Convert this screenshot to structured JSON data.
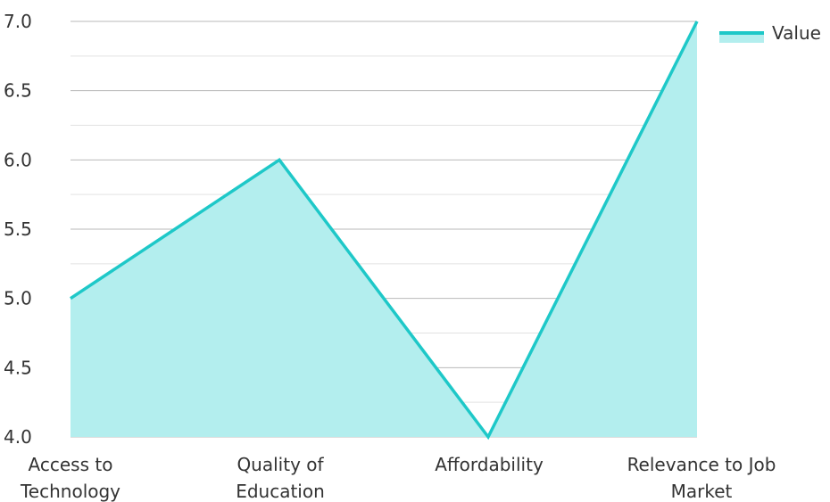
{
  "chart_data": {
    "type": "area",
    "categories": [
      [
        "Access to",
        "Technology"
      ],
      [
        "Quality of",
        "Education"
      ],
      [
        "Affordability"
      ],
      [
        "Relevance to Job",
        "Market"
      ]
    ],
    "series": [
      {
        "name": "Value",
        "values": [
          5.0,
          6.0,
          4.0,
          7.0
        ],
        "line_color": "#1ec8c8",
        "fill_color": "#b3eeee"
      }
    ],
    "ylim": [
      4.0,
      7.0
    ],
    "yticks": [
      "4.0",
      "4.5",
      "5.0",
      "5.5",
      "6.0",
      "6.5",
      "7.0"
    ],
    "grid": true,
    "legend_position": "top-right",
    "title": "",
    "xlabel": "",
    "ylabel": ""
  }
}
